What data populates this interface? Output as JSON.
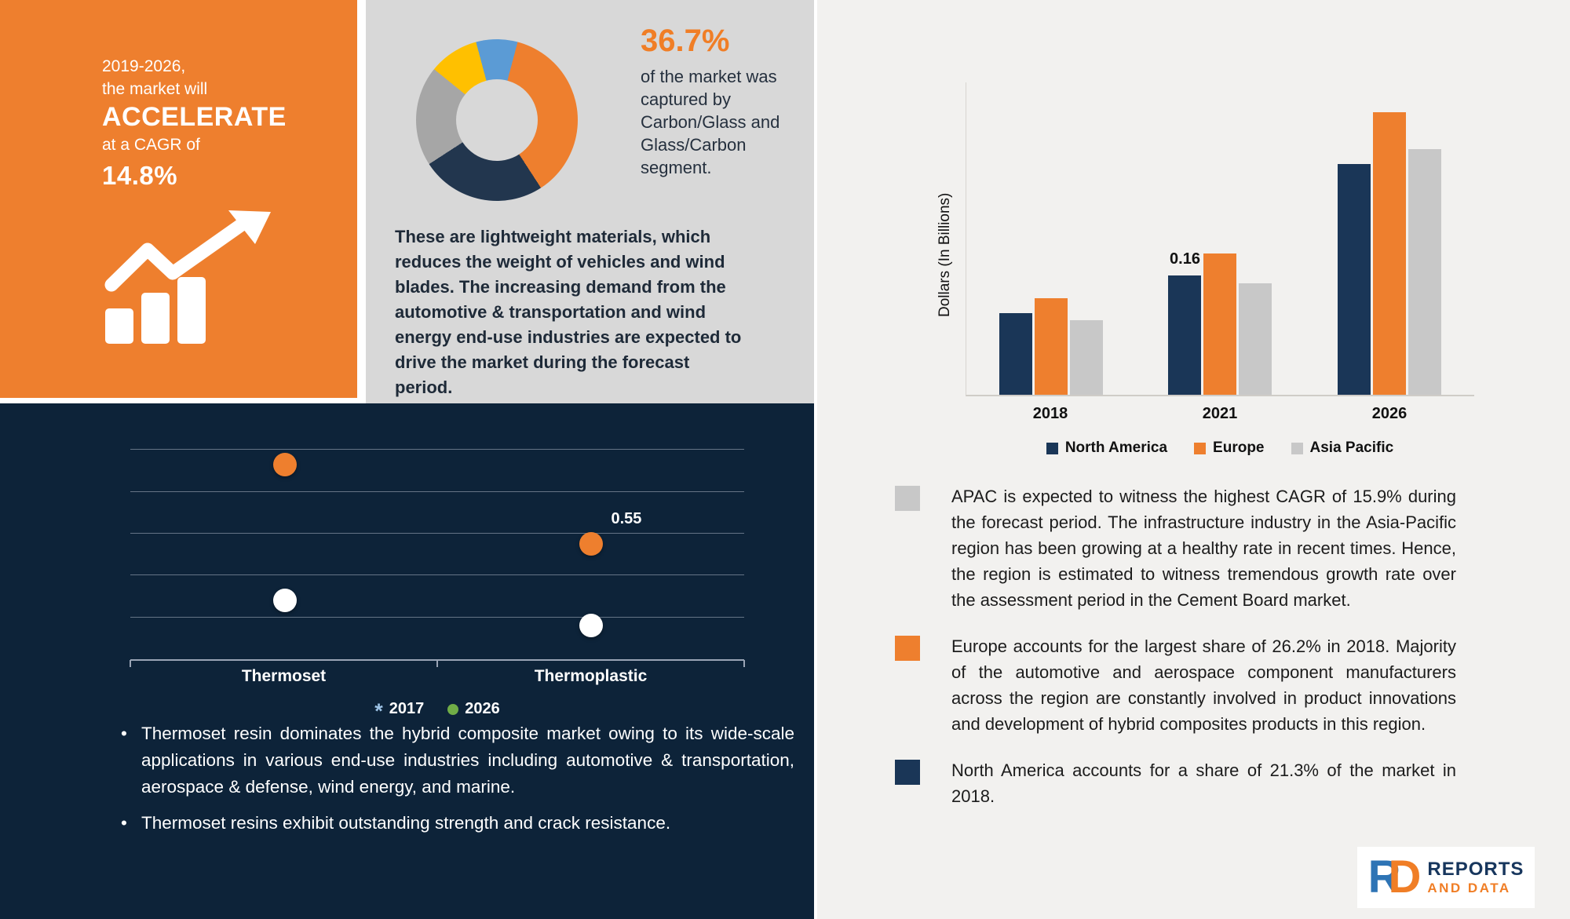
{
  "colors": {
    "orange": "#EE7F2E",
    "navy_panel": "#0D2339",
    "navy": "#1A3657",
    "gray_panel": "#D8D8D8",
    "right_bg": "#F2F1EF",
    "bar_gray": "#C8C8C8",
    "yellow": "#FFC000",
    "blue": "#5B9BD5",
    "green": "#70AD47",
    "white": "#FFFFFF"
  },
  "headline_panel": {
    "period": "2019-2026,",
    "line2": "the market will",
    "emphasis": "ACCELERATE",
    "line4": "at a CAGR of",
    "cagr": "14.8%"
  },
  "segment_panel": {
    "share_pct": "36.7%",
    "share_text": "of the market was captured by Carbon/Glass and Glass/Carbon segment.",
    "body": "These are lightweight materials, which reduces the weight of vehicles and wind blades. The increasing demand from the automotive & transportation and wind energy end-use industries are expected to drive the market during the forecast period."
  },
  "resin_panel": {
    "legend": [
      {
        "label": "2017",
        "marker": "*",
        "color": "#9DC3E6"
      },
      {
        "label": "2026",
        "marker": "dot",
        "color": "#70AD47"
      }
    ],
    "bullets": [
      "Thermoset resin dominates the hybrid composite market owing to its wide-scale applications in various end-use industries including automotive & transportation, aerospace & defense, wind energy, and marine.",
      "Thermoset resins exhibit outstanding strength and crack resistance."
    ]
  },
  "regional_panel": {
    "bullets": [
      {
        "marker_color": "#C8C8C8",
        "text": "APAC is expected to witness the highest CAGR of 15.9% during the forecast period. The infrastructure industry in the Asia-Pacific region has been growing at a healthy rate in recent times. Hence, the region is estimated to witness tremendous growth rate over the assessment period in the Cement Board market."
      },
      {
        "marker_color": "#EE7F2E",
        "text": "Europe accounts for the largest share of 26.2% in 2018. Majority of the automotive and aerospace component manufacturers across the region are constantly involved in product innovations and development of hybrid composites products in this region."
      },
      {
        "marker_color": "#1A3657",
        "text": "North America accounts for a share of 21.3% of the market in 2018."
      }
    ]
  },
  "logo": {
    "mark_r": "R",
    "mark_d": "D",
    "line1": "REPORTS",
    "line2": "AND DATA"
  },
  "chart_data": [
    {
      "id": "segment-donut",
      "type": "pie",
      "title": "",
      "annotation": "36.7% of the market was captured by Carbon/Glass and Glass/Carbon segment.",
      "start_deg": -15,
      "slices": [
        {
          "label": "unlabeled segment (blue)",
          "value": 8.3,
          "color": "#5B9BD5"
        },
        {
          "label": "Carbon/Glass and Glass/Carbon",
          "value": 36.7,
          "color": "#EE7F2E"
        },
        {
          "label": "unlabeled segment (navy)",
          "value": 25,
          "color": "#22364E"
        },
        {
          "label": "unlabeled segment (gray)",
          "value": 20,
          "color": "#A6A6A6"
        },
        {
          "label": "unlabeled segment (yellow)",
          "value": 10,
          "color": "#FFC000"
        }
      ]
    },
    {
      "id": "resin-dotplot",
      "type": "scatter",
      "title": "",
      "categories": [
        "Thermoset",
        "Thermoplastic"
      ],
      "series": [
        {
          "name": "2017",
          "color": "#FFFFFF",
          "values": [
            0.28,
            0.16
          ]
        },
        {
          "name": "2026",
          "color": "#EE7F2E",
          "values": [
            0.93,
            0.55
          ]
        }
      ],
      "data_labels": [
        {
          "series": "2026",
          "category": "Thermoplastic",
          "text": "0.55"
        }
      ],
      "ylim": [
        0,
        1.05
      ],
      "gridlines": [
        0.2,
        0.4,
        0.6,
        0.8,
        1.0
      ],
      "legend_position": "bottom"
    },
    {
      "id": "regional-bars",
      "type": "bar",
      "title": "",
      "categories": [
        "2018",
        "2021",
        "2026"
      ],
      "series": [
        {
          "name": "North America",
          "color": "#1A3657",
          "values": [
            0.11,
            0.16,
            0.31
          ]
        },
        {
          "name": "Europe",
          "color": "#EE7F2E",
          "values": [
            0.13,
            0.19,
            0.38
          ]
        },
        {
          "name": "Asia Pacific",
          "color": "#C8C8C8",
          "values": [
            0.1,
            0.15,
            0.33
          ]
        }
      ],
      "xlabel": "",
      "ylabel": "Dollars (In Billions)",
      "data_labels": [
        {
          "series": "North America",
          "category": "2021",
          "text": "0.16"
        }
      ],
      "ylim": [
        0,
        0.42
      ],
      "grid": false,
      "legend_position": "bottom"
    }
  ]
}
